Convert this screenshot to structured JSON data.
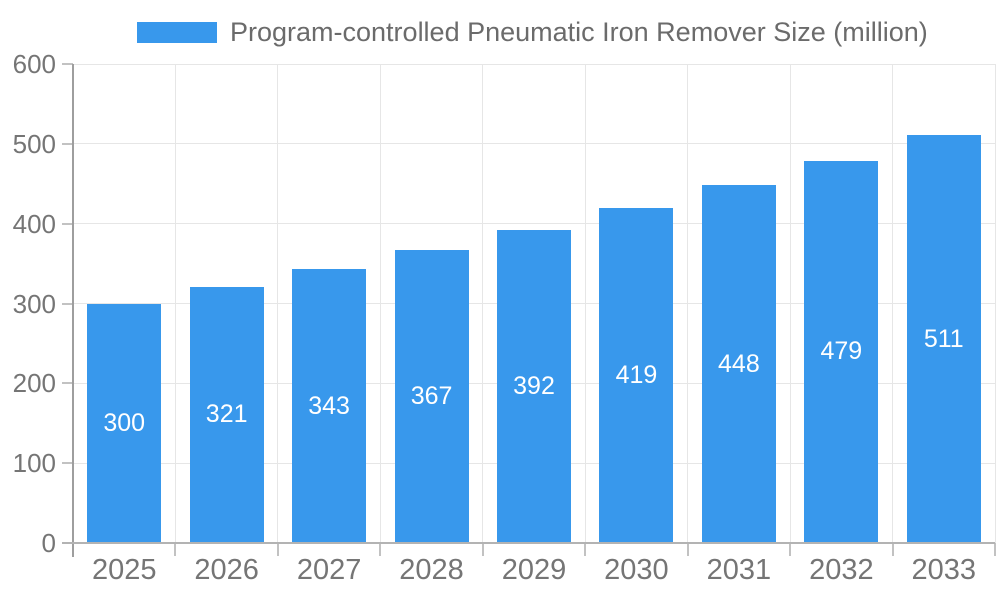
{
  "chart_data": {
    "type": "bar",
    "title": "Program-controlled Pneumatic Iron Remover Size (million)",
    "series_name": "Program-controlled Pneumatic Iron Remover Size (million)",
    "categories": [
      "2025",
      "2026",
      "2027",
      "2028",
      "2029",
      "2030",
      "2031",
      "2032",
      "2033"
    ],
    "values": [
      300,
      321,
      343,
      367,
      392,
      419,
      448,
      479,
      511
    ],
    "xlabel": "",
    "ylabel": "",
    "ylim": [
      0,
      600
    ],
    "yticks": [
      0,
      100,
      200,
      300,
      400,
      500,
      600
    ],
    "grid": true,
    "legend_position": "top",
    "value_labels_position": "inside-center",
    "colors": {
      "bar": "#3898EC",
      "value_label": "#FFFFFF",
      "axis_label": "#757575",
      "legend_text": "#6B6B6B",
      "gridline": "#E6E6E6",
      "axis_line": "#9E9E9E",
      "baseline": "#B3B3B3",
      "tick": "#C2C2C2",
      "background": "#FFFFFF"
    }
  }
}
